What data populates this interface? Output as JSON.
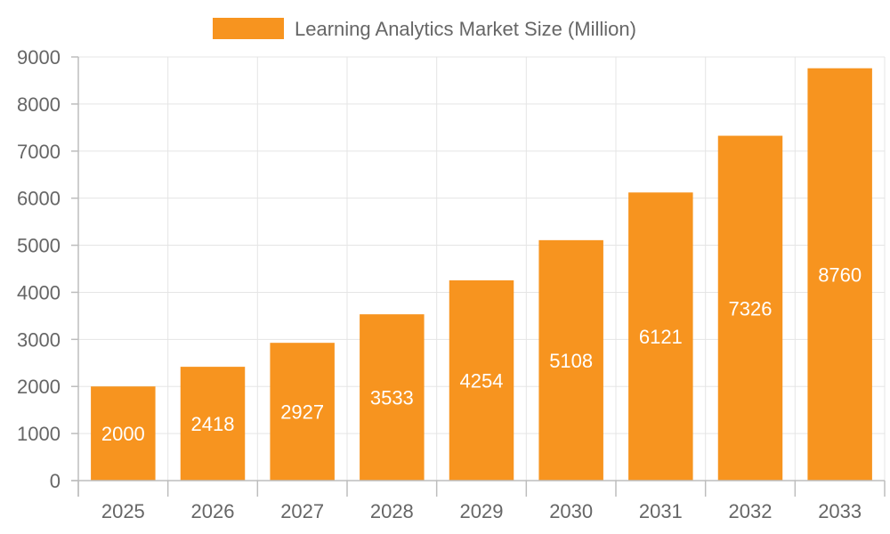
{
  "chart_data": {
    "type": "bar",
    "categories": [
      "2025",
      "2026",
      "2027",
      "2028",
      "2029",
      "2030",
      "2031",
      "2032",
      "2033"
    ],
    "series": [
      {
        "name": "Learning Analytics Market Size (Million)",
        "values": [
          2000,
          2418,
          2927,
          3533,
          4254,
          5108,
          6121,
          7326,
          8760
        ],
        "color": "#f7941f"
      }
    ],
    "data_labels": [
      "2000",
      "2418",
      "2927",
      "3533",
      "4254",
      "5108",
      "6121",
      "7326",
      "8760"
    ],
    "y_ticks": [
      "0",
      "1000",
      "2000",
      "3000",
      "4000",
      "5000",
      "6000",
      "7000",
      "8000",
      "9000"
    ],
    "ylim": [
      0,
      9000
    ],
    "grid": true,
    "legend_position": "top"
  }
}
